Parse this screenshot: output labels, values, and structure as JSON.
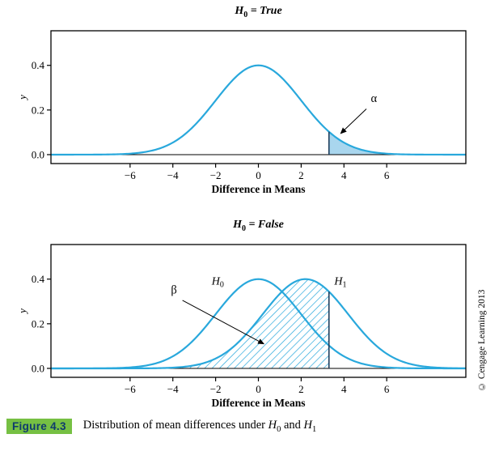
{
  "figure": {
    "label": "Figure 4.3",
    "caption_pre": "Distribution of mean differences under ",
    "caption_h0_var": "H",
    "caption_h0_sub": "0",
    "caption_mid": " and ",
    "caption_h1_var": "H",
    "caption_h1_sub": "1",
    "credit": "© Cengage Learning 2013"
  },
  "colors": {
    "curve": "#29a8dc",
    "alpha_fill": "#a9d6ee",
    "critical_line": "#1d3d5c",
    "axis": "#000000",
    "figure_label_bg": "#76c043",
    "figure_label_text": "#0f3a6d"
  },
  "chart_data": [
    {
      "type": "area",
      "title": {
        "var": "H",
        "sub": "0",
        "rest": " = True"
      },
      "xlabel": "Difference in Means",
      "ylabel": "y",
      "xlim": [
        -9.7,
        9.7
      ],
      "ylim": [
        -0.04,
        0.555
      ],
      "xticks": [
        -6,
        -4,
        -2,
        0,
        2,
        4,
        6
      ],
      "xtick_labels": [
        "−6",
        "−4",
        "−2",
        "0",
        "2",
        "4",
        "6"
      ],
      "yticks": [
        0.0,
        0.2,
        0.4
      ],
      "ytick_labels": [
        "0.0",
        "0.2",
        "0.4"
      ],
      "grid": false,
      "curves": [
        {
          "name": "H0",
          "mean": 0,
          "sd": 2,
          "peak": 0.4
        }
      ],
      "critical_value": 3.3,
      "regions": [
        {
          "kind": "fill",
          "label": "α",
          "under_curve": 0,
          "from": 3.3,
          "to": 9.7
        }
      ],
      "annotations": [
        {
          "text": "α",
          "x": 5.4,
          "y": 0.235,
          "anchor": "middle",
          "arrow": {
            "x1": 5.05,
            "y1": 0.205,
            "x2": 3.85,
            "y2": 0.095
          }
        }
      ],
      "curve_labels": []
    },
    {
      "type": "area",
      "title": {
        "var": "H",
        "sub": "0",
        "rest": " = False"
      },
      "xlabel": "Difference in Means",
      "ylabel": "y",
      "xlim": [
        -9.7,
        9.7
      ],
      "ylim": [
        -0.04,
        0.555
      ],
      "xticks": [
        -6,
        -4,
        -2,
        0,
        2,
        4,
        6
      ],
      "xtick_labels": [
        "−6",
        "−4",
        "−2",
        "0",
        "2",
        "4",
        "6"
      ],
      "yticks": [
        0.0,
        0.2,
        0.4
      ],
      "ytick_labels": [
        "0.0",
        "0.2",
        "0.4"
      ],
      "grid": false,
      "curves": [
        {
          "name": "H0",
          "mean": 0,
          "sd": 2,
          "peak": 0.4
        },
        {
          "name": "H1",
          "mean": 2.2,
          "sd": 2,
          "peak": 0.4
        }
      ],
      "critical_value": 3.3,
      "regions": [
        {
          "kind": "hatch",
          "label": "β",
          "under_curve": 1,
          "from": -9.7,
          "to": 3.3
        }
      ],
      "annotations": [
        {
          "text": "β",
          "x": -3.95,
          "y": 0.335,
          "anchor": "middle",
          "arrow": {
            "x1": -3.55,
            "y1": 0.305,
            "x2": 0.25,
            "y2": 0.11
          }
        }
      ],
      "curve_labels": [
        {
          "var": "H",
          "sub": "0",
          "x": -1.9,
          "y": 0.375,
          "anchor": "middle"
        },
        {
          "var": "H",
          "sub": "1",
          "x": 3.55,
          "y": 0.375,
          "anchor": "start"
        }
      ]
    }
  ]
}
